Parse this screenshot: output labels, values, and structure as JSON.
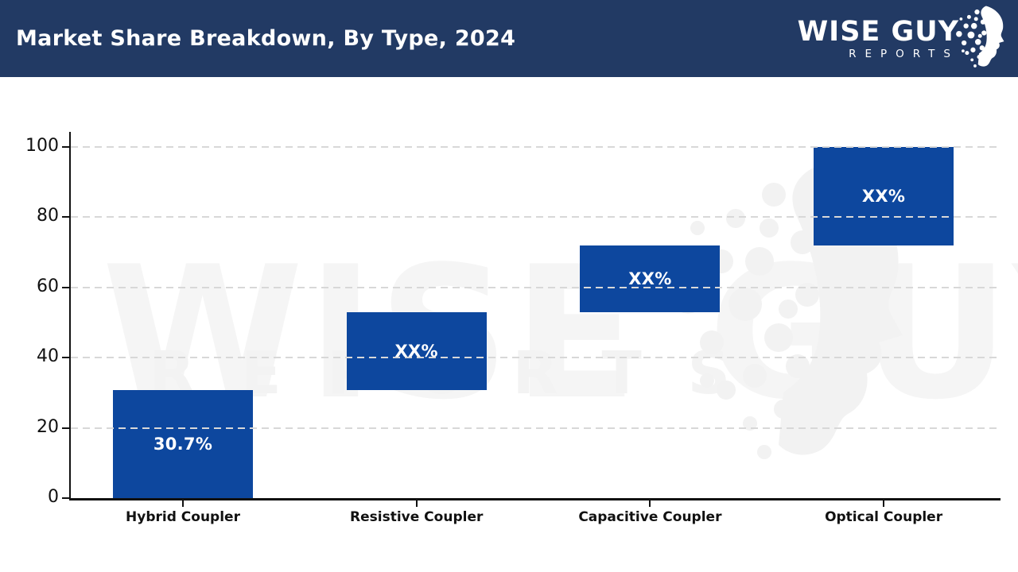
{
  "header": {
    "title": "Market Share Breakdown, By Type, 2024",
    "bg_color": "#223A64",
    "logo": {
      "line1": "WISE GUY",
      "line2": "REPORTS"
    }
  },
  "watermark": {
    "line1": "WISE GUY",
    "line2": "REPORTS"
  },
  "chart_data": {
    "type": "bar",
    "subtype": "waterfall",
    "title": "Market Share Breakdown, By Type, 2024",
    "categories": [
      "Hybrid Coupler",
      "Resistive Coupler",
      "Capacitive Coupler",
      "Optical Coupler"
    ],
    "bar_labels": [
      "30.7%",
      "XX%",
      "XX%",
      "XX%"
    ],
    "segments": [
      {
        "start": 0,
        "end": 30.7
      },
      {
        "start": 30.7,
        "end": 53
      },
      {
        "start": 53,
        "end": 72
      },
      {
        "start": 72,
        "end": 100
      }
    ],
    "y_ticks": [
      0,
      20,
      40,
      60,
      80,
      100
    ],
    "ylim": [
      0,
      105
    ],
    "xlabel": "",
    "ylabel": "",
    "bar_color": "#0D479E",
    "grid": "dashed horizontal, light gray, drawn over bars",
    "legend": "none"
  }
}
